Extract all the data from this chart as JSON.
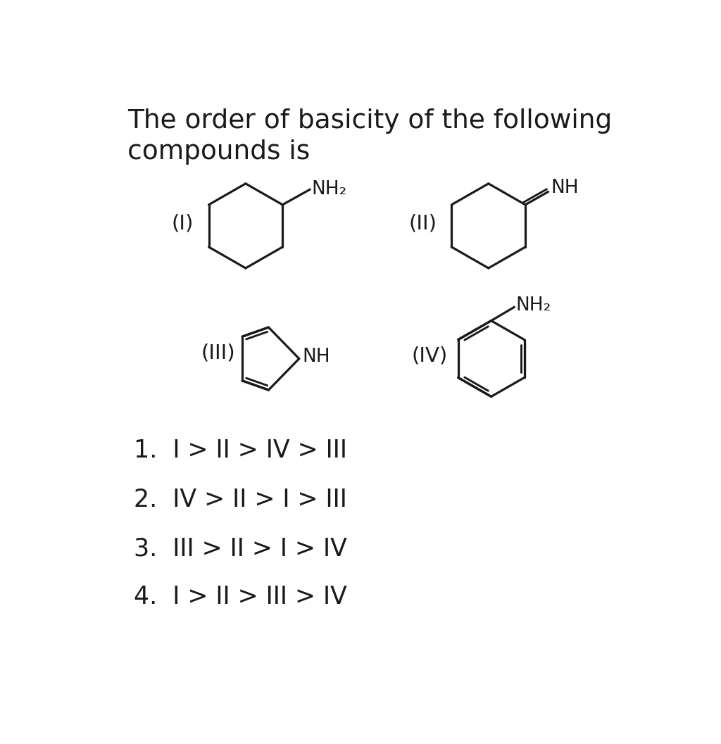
{
  "title_line1": "The order of basicity of the following",
  "title_line2": "compounds is",
  "title_fontsize": 27,
  "background_color": "#ffffff",
  "text_color": "#1a1a1a",
  "options": [
    "1.  I > II > IV > III",
    "2.  IV > II > I > III",
    "3.  III > II > I > IV",
    "4.  I > II > III > IV"
  ],
  "option_fontsize": 25,
  "label_fontsize": 21,
  "structure_labels": [
    "(I)",
    "(II)",
    "(III)",
    "(IV)"
  ],
  "nh2_label": "NH₂",
  "nh_label": "NH",
  "bond_lw": 2.3
}
